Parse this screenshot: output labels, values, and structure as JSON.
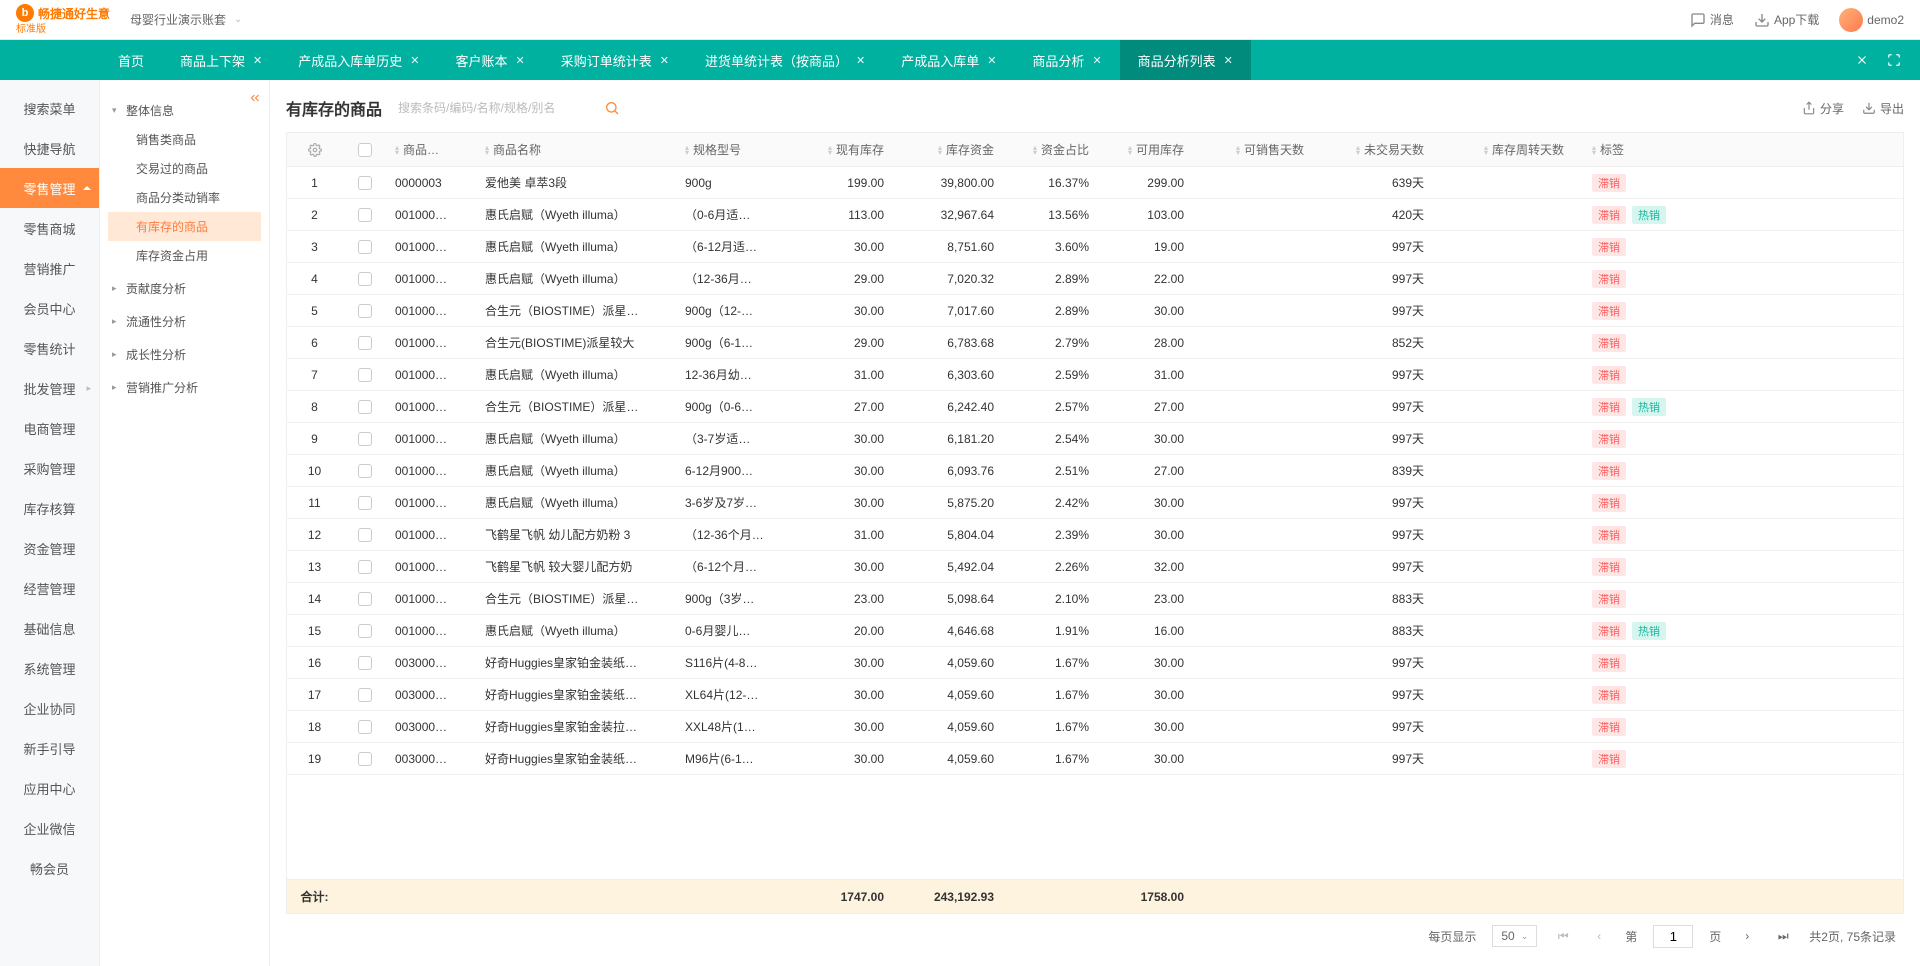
{
  "header": {
    "logo_text": "畅捷通好生意",
    "logo_sub": "标准版",
    "org_name": "母婴行业演示账套",
    "msg_label": "消息",
    "app_label": "App下载",
    "user_name": "demo2"
  },
  "tabs": [
    {
      "label": "首页",
      "closable": false
    },
    {
      "label": "商品上下架",
      "closable": true
    },
    {
      "label": "产成品入库单历史",
      "closable": true
    },
    {
      "label": "客户账本",
      "closable": true
    },
    {
      "label": "采购订单统计表",
      "closable": true
    },
    {
      "label": "进货单统计表（按商品）",
      "closable": true
    },
    {
      "label": "产成品入库单",
      "closable": true
    },
    {
      "label": "商品分析",
      "closable": true
    },
    {
      "label": "商品分析列表",
      "closable": true,
      "active": true
    }
  ],
  "sidebar": [
    "搜索菜单",
    "快捷导航",
    "零售管理",
    "零售商城",
    "营销推广",
    "会员中心",
    "零售统计",
    "批发管理",
    "电商管理",
    "采购管理",
    "库存核算",
    "资金管理",
    "经营管理",
    "基础信息",
    "系统管理",
    "企业协同",
    "新手引导",
    "应用中心",
    "企业微信",
    "畅会员"
  ],
  "sidebar_active_index": 2,
  "sidebar_expand_indices": [
    2,
    7
  ],
  "tree": {
    "groups": [
      {
        "label": "整体信息",
        "expanded": true,
        "leaves": [
          "销售类商品",
          "交易过的商品",
          "商品分类动销率",
          "有库存的商品",
          "库存资金占用"
        ],
        "active_leaf": 3
      },
      {
        "label": "贡献度分析",
        "expanded": false
      },
      {
        "label": "流通性分析",
        "expanded": false
      },
      {
        "label": "成长性分析",
        "expanded": false
      },
      {
        "label": "营销推广分析",
        "expanded": false
      }
    ]
  },
  "main": {
    "title": "有库存的商品",
    "search_placeholder": "搜索条码/编码/名称/规格/别名",
    "share_label": "分享",
    "export_label": "导出"
  },
  "columns": [
    "",
    "",
    "商品…",
    "商品名称",
    "规格型号",
    "现有库存",
    "库存资金",
    "资金占比",
    "可用库存",
    "可销售天数",
    "未交易天数",
    "库存周转天数",
    "标签"
  ],
  "rows": [
    {
      "idx": 1,
      "code": "0000003",
      "name": "爱他美 卓萃3段",
      "spec": "900g",
      "stock": "199.00",
      "fund": "39,800.00",
      "pct": "16.37%",
      "avail": "299.00",
      "sdays": "",
      "ndays": "639天",
      "turn": "",
      "tags": [
        "滞销"
      ]
    },
    {
      "idx": 2,
      "code": "001000…",
      "name": "惠氏启赋（Wyeth illuma）",
      "spec": "（0-6月适…",
      "stock": "113.00",
      "fund": "32,967.64",
      "pct": "13.56%",
      "avail": "103.00",
      "sdays": "",
      "ndays": "420天",
      "turn": "",
      "tags": [
        "滞销",
        "热销"
      ]
    },
    {
      "idx": 3,
      "code": "001000…",
      "name": "惠氏启赋（Wyeth illuma）",
      "spec": "（6-12月适…",
      "stock": "30.00",
      "fund": "8,751.60",
      "pct": "3.60%",
      "avail": "19.00",
      "sdays": "",
      "ndays": "997天",
      "turn": "",
      "tags": [
        "滞销"
      ]
    },
    {
      "idx": 4,
      "code": "001000…",
      "name": "惠氏启赋（Wyeth illuma）",
      "spec": "（12-36月…",
      "stock": "29.00",
      "fund": "7,020.32",
      "pct": "2.89%",
      "avail": "22.00",
      "sdays": "",
      "ndays": "997天",
      "turn": "",
      "tags": [
        "滞销"
      ]
    },
    {
      "idx": 5,
      "code": "001000…",
      "name": "合生元（BIOSTIME）派星…",
      "spec": "900g（12-…",
      "stock": "30.00",
      "fund": "7,017.60",
      "pct": "2.89%",
      "avail": "30.00",
      "sdays": "",
      "ndays": "997天",
      "turn": "",
      "tags": [
        "滞销"
      ]
    },
    {
      "idx": 6,
      "code": "001000…",
      "name": "合生元(BIOSTIME)派星较大",
      "spec": "900g（6-1…",
      "stock": "29.00",
      "fund": "6,783.68",
      "pct": "2.79%",
      "avail": "28.00",
      "sdays": "",
      "ndays": "852天",
      "turn": "",
      "tags": [
        "滞销"
      ]
    },
    {
      "idx": 7,
      "code": "001000…",
      "name": "惠氏启赋（Wyeth illuma）",
      "spec": "12-36月幼…",
      "stock": "31.00",
      "fund": "6,303.60",
      "pct": "2.59%",
      "avail": "31.00",
      "sdays": "",
      "ndays": "997天",
      "turn": "",
      "tags": [
        "滞销"
      ]
    },
    {
      "idx": 8,
      "code": "001000…",
      "name": "合生元（BIOSTIME）派星…",
      "spec": "900g（0-6…",
      "stock": "27.00",
      "fund": "6,242.40",
      "pct": "2.57%",
      "avail": "27.00",
      "sdays": "",
      "ndays": "997天",
      "turn": "",
      "tags": [
        "滞销",
        "热销"
      ]
    },
    {
      "idx": 9,
      "code": "001000…",
      "name": "惠氏启赋（Wyeth illuma）",
      "spec": "（3-7岁适…",
      "stock": "30.00",
      "fund": "6,181.20",
      "pct": "2.54%",
      "avail": "30.00",
      "sdays": "",
      "ndays": "997天",
      "turn": "",
      "tags": [
        "滞销"
      ]
    },
    {
      "idx": 10,
      "code": "001000…",
      "name": "惠氏启赋（Wyeth illuma）",
      "spec": "6-12月900…",
      "stock": "30.00",
      "fund": "6,093.76",
      "pct": "2.51%",
      "avail": "27.00",
      "sdays": "",
      "ndays": "839天",
      "turn": "",
      "tags": [
        "滞销"
      ]
    },
    {
      "idx": 11,
      "code": "001000…",
      "name": "惠氏启赋（Wyeth illuma）",
      "spec": "3-6岁及7岁…",
      "stock": "30.00",
      "fund": "5,875.20",
      "pct": "2.42%",
      "avail": "30.00",
      "sdays": "",
      "ndays": "997天",
      "turn": "",
      "tags": [
        "滞销"
      ]
    },
    {
      "idx": 12,
      "code": "001000…",
      "name": "飞鹤星飞帆 幼儿配方奶粉 3",
      "spec": "（12-36个月…",
      "stock": "31.00",
      "fund": "5,804.04",
      "pct": "2.39%",
      "avail": "30.00",
      "sdays": "",
      "ndays": "997天",
      "turn": "",
      "tags": [
        "滞销"
      ]
    },
    {
      "idx": 13,
      "code": "001000…",
      "name": "飞鹤星飞帆 较大婴儿配方奶",
      "spec": "（6-12个月…",
      "stock": "30.00",
      "fund": "5,492.04",
      "pct": "2.26%",
      "avail": "32.00",
      "sdays": "",
      "ndays": "997天",
      "turn": "",
      "tags": [
        "滞销"
      ]
    },
    {
      "idx": 14,
      "code": "001000…",
      "name": "合生元（BIOSTIME）派星…",
      "spec": "900g（3岁…",
      "stock": "23.00",
      "fund": "5,098.64",
      "pct": "2.10%",
      "avail": "23.00",
      "sdays": "",
      "ndays": "883天",
      "turn": "",
      "tags": [
        "滞销"
      ]
    },
    {
      "idx": 15,
      "code": "001000…",
      "name": "惠氏启赋（Wyeth illuma）",
      "spec": "0-6月婴儿…",
      "stock": "20.00",
      "fund": "4,646.68",
      "pct": "1.91%",
      "avail": "16.00",
      "sdays": "",
      "ndays": "883天",
      "turn": "",
      "tags": [
        "滞销",
        "热销"
      ]
    },
    {
      "idx": 16,
      "code": "003000…",
      "name": "好奇Huggies皇家铂金装纸…",
      "spec": "S116片(4-8…",
      "stock": "30.00",
      "fund": "4,059.60",
      "pct": "1.67%",
      "avail": "30.00",
      "sdays": "",
      "ndays": "997天",
      "turn": "",
      "tags": [
        "滞销"
      ]
    },
    {
      "idx": 17,
      "code": "003000…",
      "name": "好奇Huggies皇家铂金装纸…",
      "spec": "XL64片(12-…",
      "stock": "30.00",
      "fund": "4,059.60",
      "pct": "1.67%",
      "avail": "30.00",
      "sdays": "",
      "ndays": "997天",
      "turn": "",
      "tags": [
        "滞销"
      ]
    },
    {
      "idx": 18,
      "code": "003000…",
      "name": "好奇Huggies皇家铂金装拉…",
      "spec": "XXL48片(1…",
      "stock": "30.00",
      "fund": "4,059.60",
      "pct": "1.67%",
      "avail": "30.00",
      "sdays": "",
      "ndays": "997天",
      "turn": "",
      "tags": [
        "滞销"
      ]
    },
    {
      "idx": 19,
      "code": "003000…",
      "name": "好奇Huggies皇家铂金装纸…",
      "spec": "M96片(6-1…",
      "stock": "30.00",
      "fund": "4,059.60",
      "pct": "1.67%",
      "avail": "30.00",
      "sdays": "",
      "ndays": "997天",
      "turn": "",
      "tags": [
        "滞销"
      ]
    }
  ],
  "footer": {
    "label": "合计:",
    "stock": "1747.00",
    "fund": "243,192.93",
    "avail": "1758.00"
  },
  "pager": {
    "per_page_label": "每页显示",
    "per_page_value": "50",
    "page_label_prefix": "第",
    "page_value": "1",
    "page_label_suffix": "页",
    "total_text": "共2页, 75条记录"
  },
  "colors": {
    "primary": "#00b1a0",
    "primary_dark": "#008b7d",
    "accent": "#ff8a3d",
    "tag_zx_bg": "#ffe6e6",
    "tag_zx_fg": "#ff5b5b",
    "tag_rx_bg": "#d6f5ef",
    "tag_rx_fg": "#17b99a",
    "footer_bg": "#fdf3df"
  }
}
